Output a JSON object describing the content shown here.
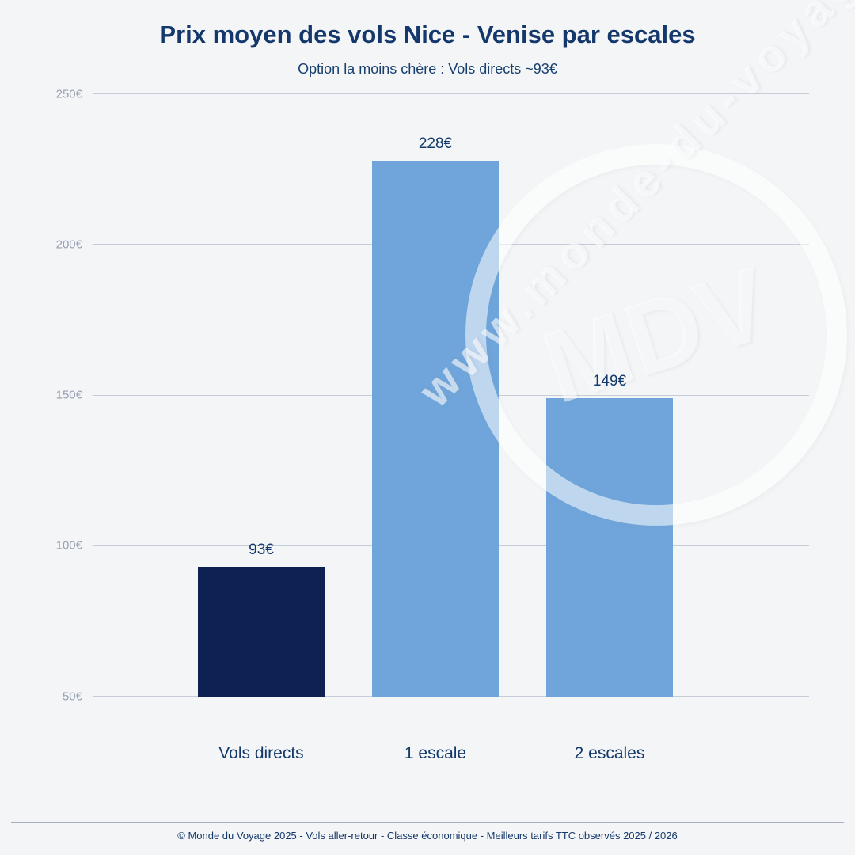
{
  "page": {
    "title": "Prix moyen des vols Nice - Venise par escales",
    "subtitle": "Option la moins chère : Vols directs ~93€",
    "footer": "© Monde du Voyage 2025 - Vols aller-retour - Classe économique - Meilleurs tarifs TTC observés 2025 / 2026"
  },
  "watermark": {
    "text": "www.monde-du-voyage.com",
    "logo": "MDV"
  },
  "colors": {
    "background": "#f4f5f7",
    "title": "#14386b",
    "bar_primary": "#0d2152",
    "bar_secondary": "#6fa5da",
    "axis_label": "#98a0b2",
    "gridline": "#c6ccd8"
  },
  "chart_data": {
    "type": "bar",
    "title": "Prix moyen des vols Nice - Venise par escales",
    "subtitle": "Option la moins chère : Vols directs ~93€",
    "categories": [
      "Vols directs",
      "1 escale",
      "2 escales"
    ],
    "values": [
      93,
      228,
      149
    ],
    "value_labels": [
      "93€",
      "228€",
      "149€"
    ],
    "bar_colors": [
      "#0d2152",
      "#6fa5da",
      "#6fa5da"
    ],
    "xlabel": "",
    "ylabel": "",
    "ylim": [
      50,
      250
    ],
    "yticks": [
      50,
      100,
      150,
      200,
      250
    ],
    "ytick_labels": [
      "50€",
      "100€",
      "150€",
      "200€",
      "250€"
    ],
    "grid": true,
    "legend": false,
    "currency": "EUR"
  }
}
